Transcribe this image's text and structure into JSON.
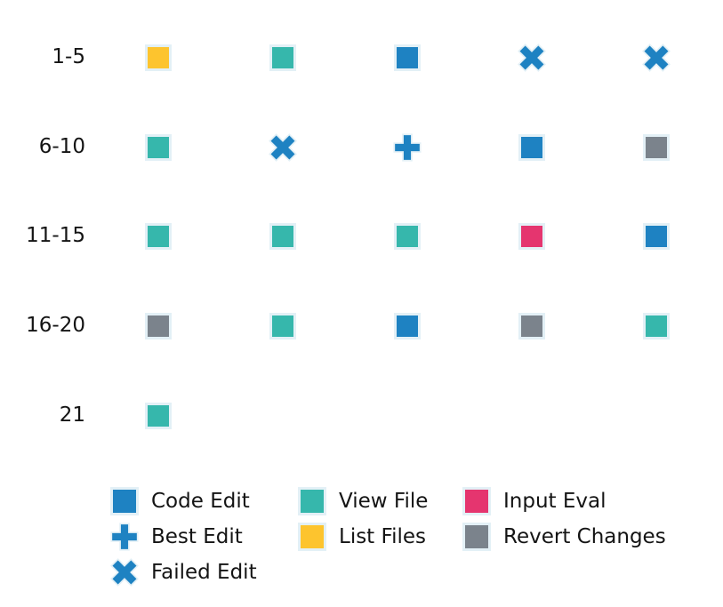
{
  "chart_data": {
    "type": "scatter",
    "title": "",
    "xlabel": "",
    "ylabel": "",
    "grid_lines": false,
    "axes_visible": false,
    "background": "#ffffff",
    "text_color": "#141414",
    "marker_edge_color": "#e3f0f6",
    "row_labels": [
      "1-5",
      "6-10",
      "11-15",
      "16-20",
      "21"
    ],
    "columns_per_row": 5,
    "grid": [
      [
        "List Files",
        "View File",
        "Code Edit",
        "Failed Edit",
        "Failed Edit"
      ],
      [
        "View File",
        "Failed Edit",
        "Best Edit",
        "Code Edit",
        "Revert Changes"
      ],
      [
        "View File",
        "View File",
        "View File",
        "Input Eval",
        "Code Edit"
      ],
      [
        "Revert Changes",
        "View File",
        "Code Edit",
        "Revert Changes",
        "View File"
      ],
      [
        "View File"
      ]
    ],
    "legend": {
      "position": "bottom",
      "columns": 3,
      "items": [
        {
          "label": "Code Edit",
          "marker": "square",
          "color": "#1e82c2"
        },
        {
          "label": "View File",
          "marker": "square",
          "color": "#36b7ac"
        },
        {
          "label": "Input Eval",
          "marker": "square",
          "color": "#e5356f"
        },
        {
          "label": "Best Edit",
          "marker": "plus",
          "color": "#1e82c2"
        },
        {
          "label": "List Files",
          "marker": "square",
          "color": "#fdc42e"
        },
        {
          "label": "Revert Changes",
          "marker": "square",
          "color": "#7b838c"
        },
        {
          "label": "Failed Edit",
          "marker": "x",
          "color": "#1e82c2"
        }
      ]
    }
  }
}
